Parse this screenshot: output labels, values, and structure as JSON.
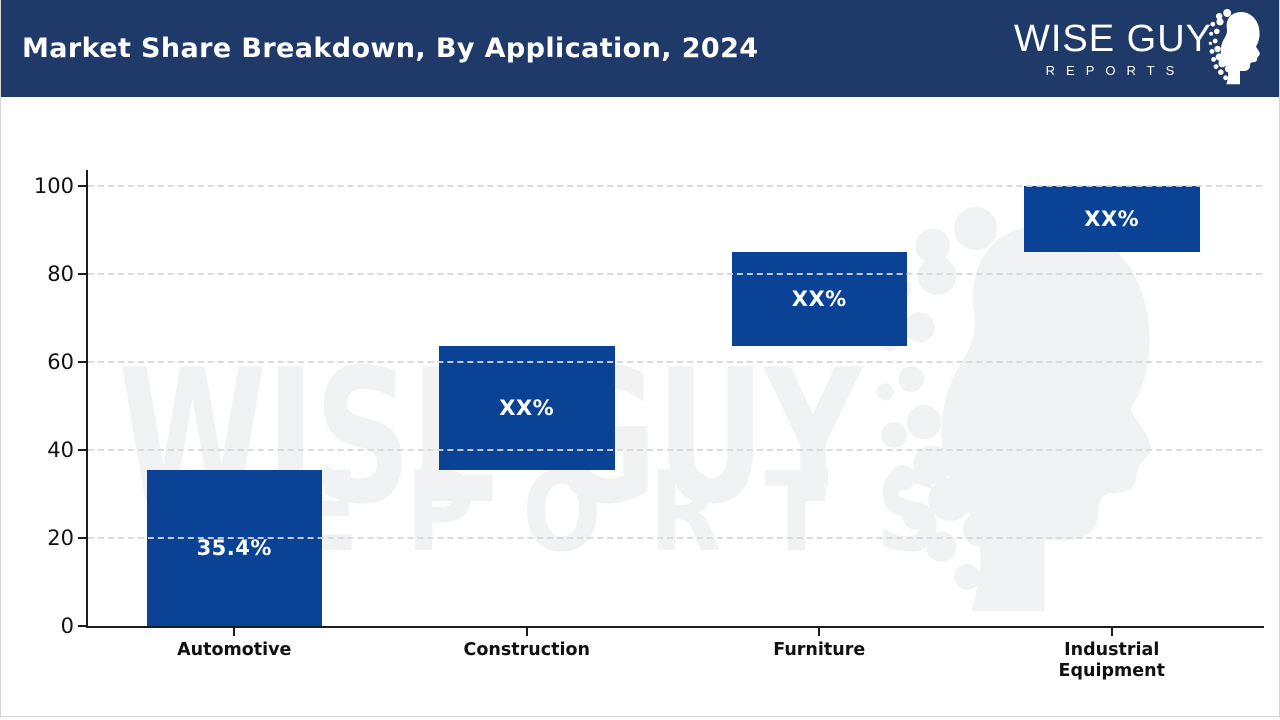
{
  "header": {
    "title": "Market Share Breakdown, By Application, 2024",
    "logo": {
      "line1": "WISE GUY",
      "line2": "REPORTS"
    }
  },
  "watermark": {
    "line1": "WISE GUY",
    "line2": "REPORTS"
  },
  "colors": {
    "header_bg": "#1f3a68",
    "bar": "#0a4296",
    "bar_label": "#ffffff",
    "axis": "#1c1c1c",
    "gridline": "#d7d7d7",
    "tick_label": "#111111",
    "watermark": "#f1f2f4",
    "background": "#ffffff"
  },
  "chart_data": {
    "type": "bar",
    "subtype": "waterfall",
    "title": "Market Share Breakdown, By Application, 2024",
    "categories": [
      "Automotive",
      "Construction",
      "Furniture",
      "Industrial\nEquipment"
    ],
    "segments": [
      {
        "category": "Automotive",
        "start": 0,
        "end": 35.4,
        "label": "35.4%"
      },
      {
        "category": "Construction",
        "start": 35.4,
        "end": 63.6,
        "label": "XX%"
      },
      {
        "category": "Furniture",
        "start": 63.6,
        "end": 85,
        "label": "XX%"
      },
      {
        "category": "Industrial Equipment",
        "start": 85,
        "end": 100,
        "label": "XX%"
      }
    ],
    "xlabel": "",
    "ylabel": "",
    "ylim": [
      0,
      100
    ],
    "yticks": [
      0,
      20,
      40,
      60,
      80,
      100
    ],
    "grid": "horizontal-dashed-over-bars",
    "legend": "none"
  }
}
